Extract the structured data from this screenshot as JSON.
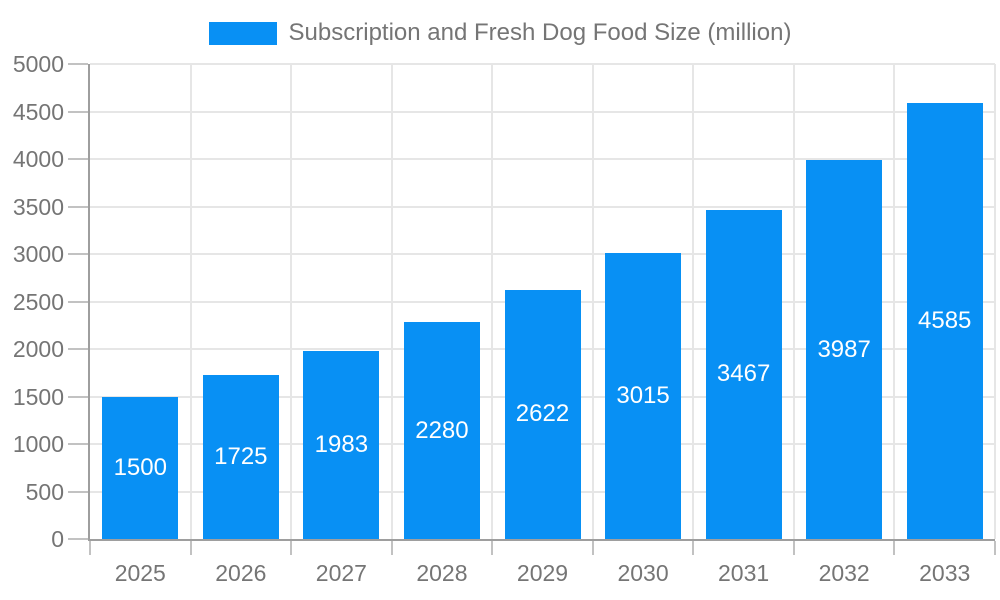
{
  "legend": {
    "label": "Subscription and Fresh Dog Food Size (million)"
  },
  "chart_data": {
    "type": "bar",
    "title": "Subscription and Fresh Dog Food Size (million)",
    "series_name": "Subscription and Fresh Dog Food Size (million)",
    "categories": [
      "2025",
      "2026",
      "2027",
      "2028",
      "2029",
      "2030",
      "2031",
      "2032",
      "2033"
    ],
    "values": [
      1500,
      1725,
      1983,
      2280,
      2622,
      3015,
      3467,
      3987,
      4585
    ],
    "xlabel": "",
    "ylabel": "",
    "ylim": [
      0,
      5000
    ],
    "ytick_step": 500,
    "y_tick_labels": [
      "0",
      "500",
      "1000",
      "1500",
      "2000",
      "2500",
      "3000",
      "3500",
      "4000",
      "4500",
      "5000"
    ],
    "grid": true,
    "legend_position": "top-center",
    "value_label_position": "inside-center",
    "colors": {
      "bar": "#0890f4",
      "value_label": "#ffffff",
      "axis_line": "#9e9e9e",
      "grid_line": "#e6e6e6",
      "tick": "#c2c2c2",
      "axis_text": "#757575",
      "legend_text": "#757575",
      "background": "#ffffff"
    }
  }
}
